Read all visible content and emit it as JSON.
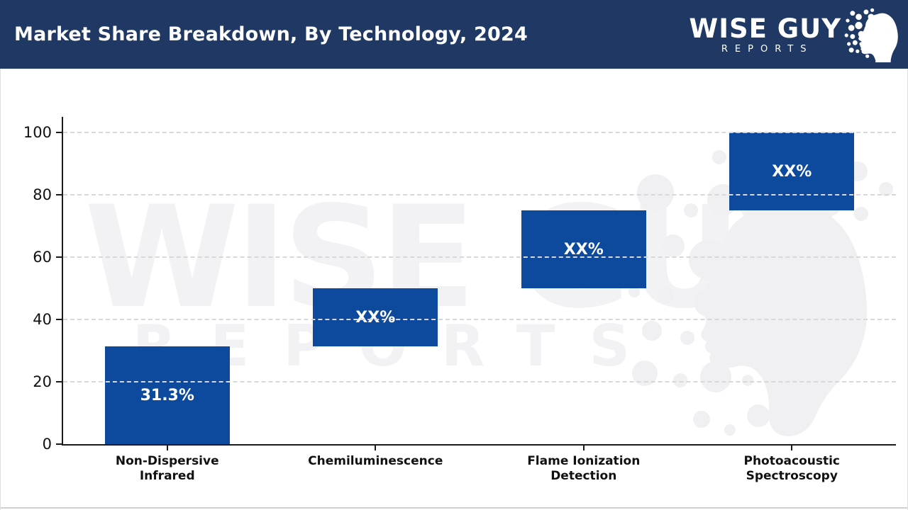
{
  "header": {
    "title": "Market Share Breakdown, By Technology, 2024",
    "logo": {
      "line1": "WISE GUY",
      "line2": "REPORTS",
      "face_icon": "wiseguy-face-icon"
    }
  },
  "watermark": {
    "line1": "WISE GUY",
    "line2": "REPORTS",
    "face_icon": "wiseguy-face-watermark"
  },
  "colors": {
    "header_bg": "#1f3864",
    "bar": "#0d4a9e",
    "grid": "#d8d8d8",
    "axis": "#1a1a1a",
    "bar_label": "#ffffff",
    "watermark": "#f2f2f5"
  },
  "chart_data": {
    "type": "bar",
    "subtype": "waterfall",
    "title": "Market Share Breakdown, By Technology, 2024",
    "xlabel": "",
    "ylabel": "",
    "ylim": [
      0,
      100
    ],
    "yticks": [
      0,
      20,
      40,
      60,
      80,
      100
    ],
    "grid": "horizontal-dashed",
    "legend": "none",
    "categories": [
      "Non-Dispersive\nInfrared",
      "Chemiluminescence",
      "Flame Ionization\nDetection",
      "Photoacoustic\nSpectroscopy"
    ],
    "segments": [
      {
        "category": "Non-Dispersive\nInfrared",
        "start": 0,
        "end": 31.3,
        "value": 31.3,
        "label": "31.3%"
      },
      {
        "category": "Chemiluminescence",
        "start": 31.3,
        "end": 50,
        "value": 18.7,
        "label": "XX%"
      },
      {
        "category": "Flame Ionization\nDetection",
        "start": 50,
        "end": 75,
        "value": 25,
        "label": "XX%"
      },
      {
        "category": "Photoacoustic\nSpectroscopy",
        "start": 75,
        "end": 100,
        "value": 25,
        "label": "XX%"
      }
    ]
  }
}
